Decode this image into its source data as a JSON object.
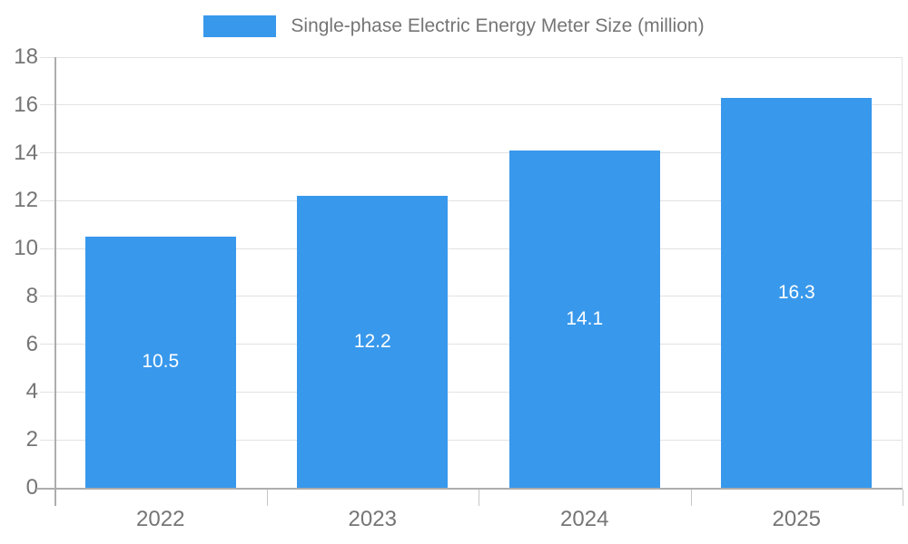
{
  "chart_data": {
    "type": "bar",
    "title": "Single-phase Electric Energy Meter Size (million)",
    "categories": [
      "2022",
      "2023",
      "2024",
      "2025"
    ],
    "values": [
      10.5,
      12.2,
      14.1,
      16.3
    ],
    "value_labels": [
      "10.5",
      "12.2",
      "14.1",
      "16.3"
    ],
    "xlabel": "",
    "ylabel": "",
    "ylim": [
      0,
      18
    ],
    "yticks": [
      0,
      2,
      4,
      6,
      8,
      10,
      12,
      14,
      16,
      18
    ],
    "grid": true,
    "legend_position": "top",
    "colors": {
      "bar": "#3898EC",
      "value_label": "#FFFFFF",
      "axis_text": "#757575",
      "axis_line": "#ADADAD",
      "gridline": "#E2E2E2",
      "tick": "#C6C6C6",
      "background": "#FFFFFF"
    }
  }
}
